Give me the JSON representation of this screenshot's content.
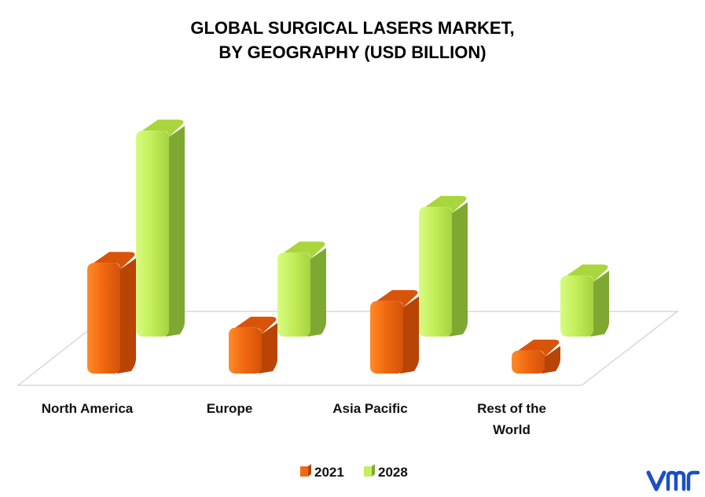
{
  "chart_data": {
    "type": "bar",
    "title_line1": "GLOBAL SURGICAL LASERS MARKET,",
    "title_line2": "BY GEOGRAPHY (USD BILLION)",
    "categories": [
      "North America",
      "Europe",
      "Asia Pacific",
      "Rest of the World"
    ],
    "category_lines": [
      [
        "North America"
      ],
      [
        "Europe"
      ],
      [
        "Asia Pacific"
      ],
      [
        "Rest of the",
        "World"
      ]
    ],
    "series": [
      {
        "name": "2021",
        "values": [
          1.45,
          0.6,
          0.95,
          0.3
        ],
        "color": "#e8590c"
      },
      {
        "name": "2028",
        "values": [
          2.7,
          1.1,
          1.7,
          0.8
        ],
        "color": "#b5e53c"
      }
    ],
    "ylim": [
      0,
      3
    ],
    "grid": false,
    "legend_position": "bottom",
    "three_d": true
  },
  "colors": {
    "orange_front": "#f26a10",
    "orange_side": "#b84406",
    "orange_top": "#d95408",
    "green_front": "#c4ef5a",
    "green_side": "#7fa832",
    "green_top": "#a8d63c",
    "floor_edge": "#d0d0d0",
    "logo": "#1c4fc4"
  },
  "logo": {
    "name": "vmr-logo-icon"
  }
}
